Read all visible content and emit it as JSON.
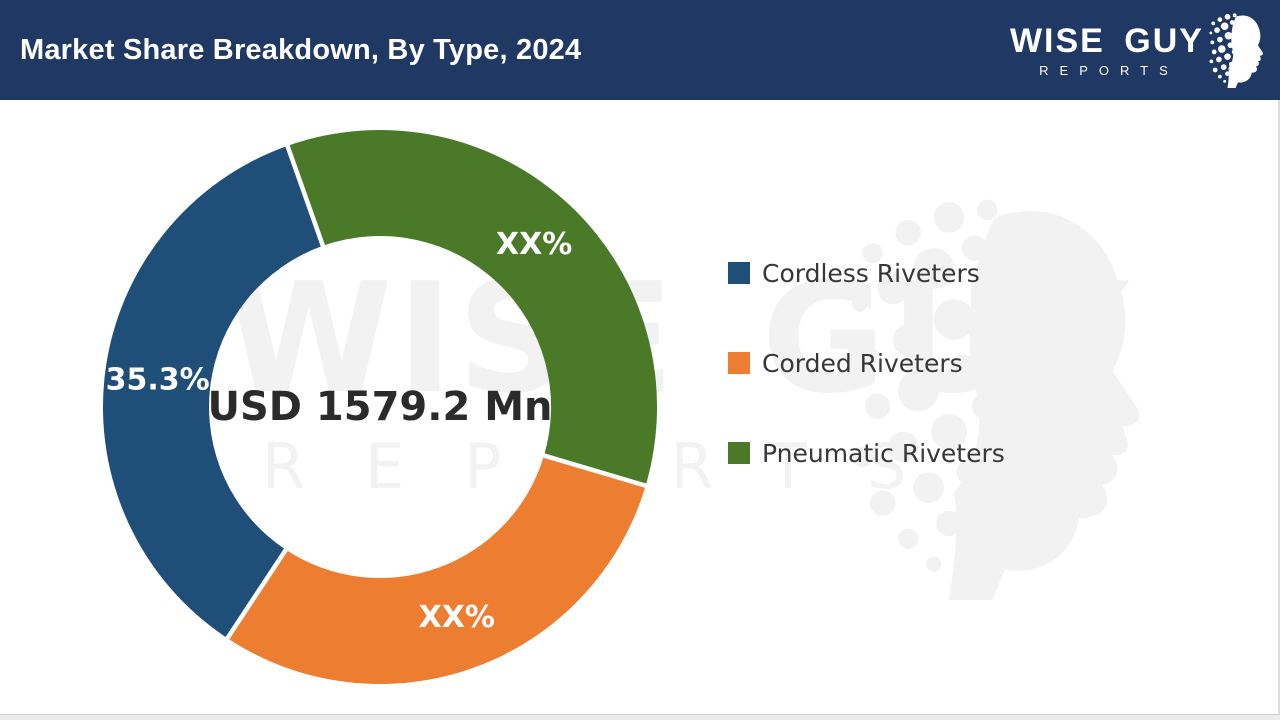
{
  "header": {
    "title": "Market Share Breakdown, By Type, 2024",
    "bg_color": "#1F3864",
    "logo": {
      "wordmark": "WISE GUY",
      "subtitle": "REPORTS"
    }
  },
  "watermark": {
    "wordmark": "WISE GUY",
    "subtitle": "REPORTS"
  },
  "chart_data": {
    "type": "donut",
    "title": "Market Share Breakdown, By Type, 2024",
    "center_label": "USD 1579.2 Mn",
    "start_angle_deg": -19.5,
    "direction": "clockwise",
    "legend_position": "right",
    "segments": [
      {
        "name": "Pneumatic Riveters",
        "value_pct": 35.0,
        "slice_label": "XX%",
        "color": "#4A7A28"
      },
      {
        "name": "Corded Riveters",
        "value_pct": 29.7,
        "slice_label": "XX%",
        "color": "#ED7D31"
      },
      {
        "name": "Cordless Riveters",
        "value_pct": 35.3,
        "slice_label": "35.3%",
        "color": "#1F4E79"
      }
    ]
  },
  "legend": {
    "items": [
      {
        "label": "Cordless Riveters",
        "color": "#1F4E79"
      },
      {
        "label": "Corded Riveters",
        "color": "#ED7D31"
      },
      {
        "label": "Pneumatic Riveters",
        "color": "#4A7A28"
      }
    ]
  }
}
